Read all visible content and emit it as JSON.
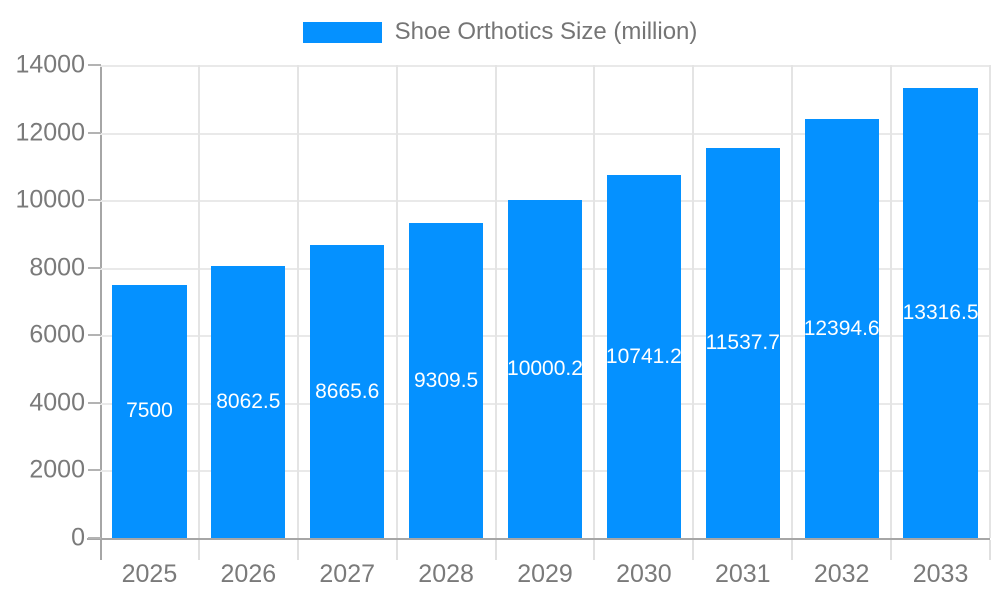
{
  "legend": {
    "label": "Shoe Orthotics Size (million)"
  },
  "chart_data": {
    "type": "bar",
    "title": "",
    "legend_entries": [
      "Shoe Orthotics Size (million)"
    ],
    "legend_position": "top-center",
    "categories": [
      "2025",
      "2026",
      "2027",
      "2028",
      "2029",
      "2030",
      "2031",
      "2032",
      "2033"
    ],
    "series": [
      {
        "name": "Shoe Orthotics Size (million)",
        "values": [
          7500,
          8062.5,
          8665.6,
          9309.5,
          10000.2,
          10741.2,
          11537.7,
          12394.6,
          13316.5
        ]
      }
    ],
    "value_labels": [
      "7500",
      "8062.5",
      "8665.6",
      "9309.5",
      "10000.2",
      "10741.2",
      "11537.7",
      "12394.6",
      "13316.5"
    ],
    "xlabel": "",
    "ylabel": "",
    "ylim": [
      0,
      14000
    ],
    "y_ticks": [
      0,
      2000,
      4000,
      6000,
      8000,
      10000,
      12000,
      14000
    ],
    "grid": "on",
    "colors": {
      "bar": "#0591ff",
      "grid_horizontal": "#e9e9e9",
      "grid_vertical": "#e4e4e4",
      "axis_border": "#a6a6a6",
      "tick_text": "#7a7a7a",
      "legend_text": "#757575",
      "bar_value_text": "#ffffff",
      "background": "#ffffff"
    }
  }
}
